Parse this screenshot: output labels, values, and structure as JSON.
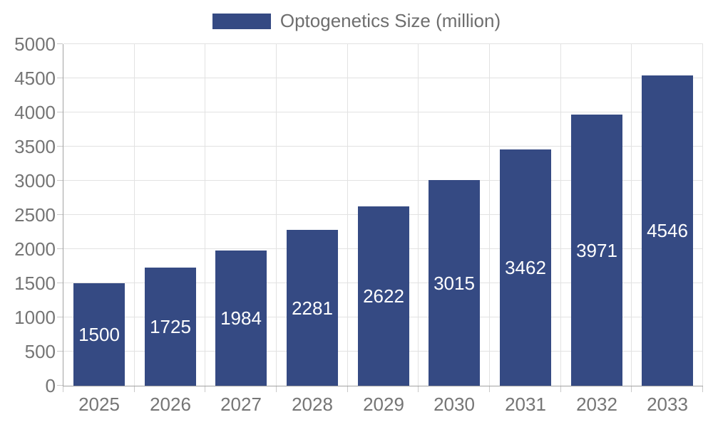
{
  "legend": {
    "label": "Optogenetics Size (million)"
  },
  "colors": {
    "bar_fill": "#354a83",
    "bar_label": "#ffffff",
    "axis_line": "#a2a2a2",
    "grid_line": "#e2e2e2",
    "tick_mark": "#c9c9c9",
    "tick_label": "#757575",
    "legend_text": "#6e6e6e",
    "background": "#ffffff"
  },
  "chart_data": {
    "type": "bar",
    "title": "Optogenetics Size (million)",
    "categories": [
      "2025",
      "2026",
      "2027",
      "2028",
      "2029",
      "2030",
      "2031",
      "2032",
      "2033"
    ],
    "series": [
      {
        "name": "Optogenetics Size (million)",
        "values": [
          1500,
          1725,
          1984,
          2281,
          2622,
          3015,
          3462,
          3971,
          4546
        ]
      }
    ],
    "xlabel": "",
    "ylabel": "",
    "ylim": [
      0,
      5000
    ],
    "ytick_step": 500,
    "grid": true,
    "legend_position": "top",
    "bar_labels_inside": true
  }
}
